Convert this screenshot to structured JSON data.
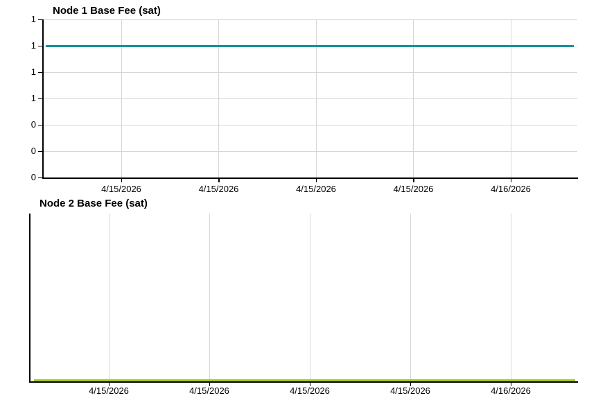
{
  "page": {
    "background_color": "#ffffff",
    "text_color": "#000000",
    "grid_color": "#d6d6d6",
    "axis_color": "#000000"
  },
  "chart_data": [
    {
      "type": "line",
      "title": "Node 1 Base Fee (sat)",
      "xlabel": "",
      "ylabel": "",
      "grid": true,
      "legend": false,
      "x_tick_labels": [
        "4/15/2026",
        "4/15/2026",
        "4/15/2026",
        "4/15/2026",
        "4/16/2026"
      ],
      "y_tick_labels_top_to_bottom": [
        "1",
        "1",
        "1",
        "1",
        "0",
        "0",
        "0"
      ],
      "value_line_y_tick_index": 1,
      "series": [
        {
          "name": "Node 1 Base Fee (sat)",
          "color": "#13929a",
          "constant_value": 1,
          "values": [
            1,
            1,
            1,
            1,
            1
          ]
        }
      ]
    },
    {
      "type": "line",
      "title": "Node 2 Base Fee (sat)",
      "xlabel": "",
      "ylabel": "",
      "grid": true,
      "legend": false,
      "x_tick_labels": [
        "4/15/2026",
        "4/15/2026",
        "4/15/2026",
        "4/15/2026",
        "4/16/2026"
      ],
      "y_tick_labels_top_to_bottom": [],
      "value_line_y_tick_index": null,
      "series": [
        {
          "name": "Node 2 Base Fee (sat)",
          "color": "#a4ce1c",
          "constant_value": 0,
          "values": [
            0,
            0,
            0,
            0,
            0
          ]
        }
      ]
    }
  ]
}
